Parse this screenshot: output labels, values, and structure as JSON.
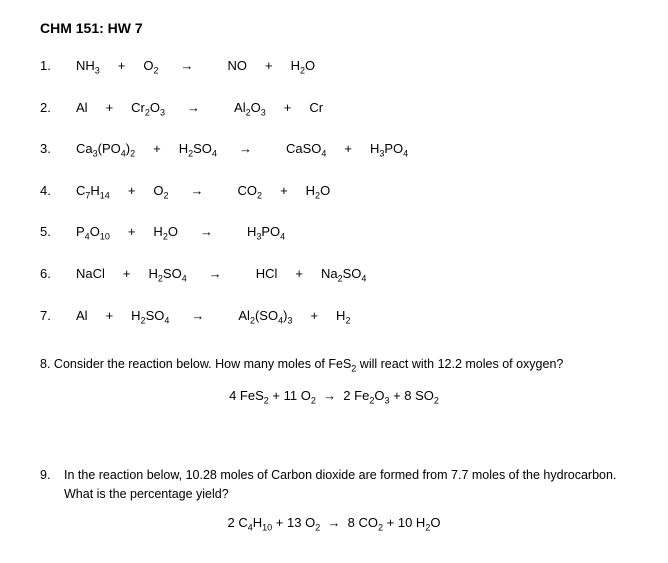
{
  "title": "CHM 151: HW 7",
  "problems": [
    {
      "num": "1.",
      "lhs": [
        {
          "t": "NH",
          "s": "3"
        },
        {
          "plus": true
        },
        {
          "t": "O",
          "s": "2"
        }
      ],
      "rhs": [
        {
          "t": "NO"
        },
        {
          "plus": true
        },
        {
          "t": "H",
          "s": "2"
        },
        {
          "t": "O"
        }
      ]
    },
    {
      "num": "2.",
      "lhs": [
        {
          "t": "Al"
        },
        {
          "plus": true
        },
        {
          "t": "Cr",
          "s": "2"
        },
        {
          "t": "O",
          "s": "3"
        }
      ],
      "rhs": [
        {
          "t": "Al",
          "s": "2"
        },
        {
          "t": "O",
          "s": "3"
        },
        {
          "plus": true
        },
        {
          "t": "Cr"
        }
      ]
    },
    {
      "num": "3.",
      "lhs": [
        {
          "t": "Ca",
          "s": "3"
        },
        {
          "t": "(PO",
          "s": "4"
        },
        {
          "t": ")",
          "s": "2"
        },
        {
          "plus": true
        },
        {
          "t": "H",
          "s": "2"
        },
        {
          "t": "SO",
          "s": "4"
        }
      ],
      "rhs": [
        {
          "t": "CaSO",
          "s": "4"
        },
        {
          "plus": true
        },
        {
          "t": "H",
          "s": "3"
        },
        {
          "t": "PO",
          "s": "4"
        }
      ]
    },
    {
      "num": "4.",
      "lhs": [
        {
          "t": "C",
          "s": "7"
        },
        {
          "t": "H",
          "s": "14"
        },
        {
          "plus": true
        },
        {
          "t": "O",
          "s": "2"
        }
      ],
      "rhs": [
        {
          "t": "CO",
          "s": "2"
        },
        {
          "plus": true
        },
        {
          "t": "H",
          "s": "2"
        },
        {
          "t": "O"
        }
      ]
    },
    {
      "num": "5.",
      "lhs": [
        {
          "t": "P",
          "s": "4"
        },
        {
          "t": "O",
          "s": "10"
        },
        {
          "plus": true
        },
        {
          "t": "H",
          "s": "2"
        },
        {
          "t": "O"
        }
      ],
      "rhs": [
        {
          "t": "H",
          "s": "3"
        },
        {
          "t": "PO",
          "s": "4"
        }
      ]
    },
    {
      "num": "6.",
      "lhs": [
        {
          "t": "NaCl"
        },
        {
          "plus": true
        },
        {
          "t": "H",
          "s": "2"
        },
        {
          "t": "SO",
          "s": "4"
        }
      ],
      "rhs": [
        {
          "t": "HCl"
        },
        {
          "plus": true
        },
        {
          "t": "Na",
          "s": "2"
        },
        {
          "t": "SO",
          "s": "4"
        }
      ]
    },
    {
      "num": "7.",
      "lhs": [
        {
          "t": "Al"
        },
        {
          "plus": true
        },
        {
          "t": "H",
          "s": "2"
        },
        {
          "t": "SO",
          "s": "4"
        }
      ],
      "rhs": [
        {
          "t": "Al",
          "s": "2"
        },
        {
          "t": "(SO",
          "s": "4"
        },
        {
          "t": ")",
          "s": "3"
        },
        {
          "plus": true
        },
        {
          "t": "H",
          "s": "2"
        }
      ]
    }
  ],
  "q8_num": "8.",
  "q8_text": "Consider the reaction below. How many moles of FeS",
  "q8_text_sub": "2",
  "q8_text_after": " will react with 12.2 moles of oxygen?",
  "q8_eq_prefix": "4 FeS",
  "q8_eq_s1": "2",
  "q8_eq_mid": " + 11 O",
  "q8_eq_s2": "2",
  "q8_eq_rhs1": "2 Fe",
  "q8_eq_rs1": "2",
  "q8_eq_rhs2": "O",
  "q8_eq_rs2": "3",
  "q8_eq_rhs3": " + 8 SO",
  "q8_eq_rs3": "2",
  "q9_num": "9.",
  "q9_text": "In the reaction below, 10.28 moles of Carbon dioxide are formed from 7.7 moles of the hydrocarbon. What is the percentage yield?",
  "q9_eq_p1": "2 C",
  "q9_eq_s1": "4",
  "q9_eq_p2": "H",
  "q9_eq_s2": "10",
  "q9_eq_p3": " + 13 O",
  "q9_eq_s3": "2",
  "q9_eq_r1": "8 CO",
  "q9_eq_rs1": "2",
  "q9_eq_r2": " + 10 H",
  "q9_eq_rs2": "2",
  "q9_eq_r3": "O",
  "arrow": "→"
}
